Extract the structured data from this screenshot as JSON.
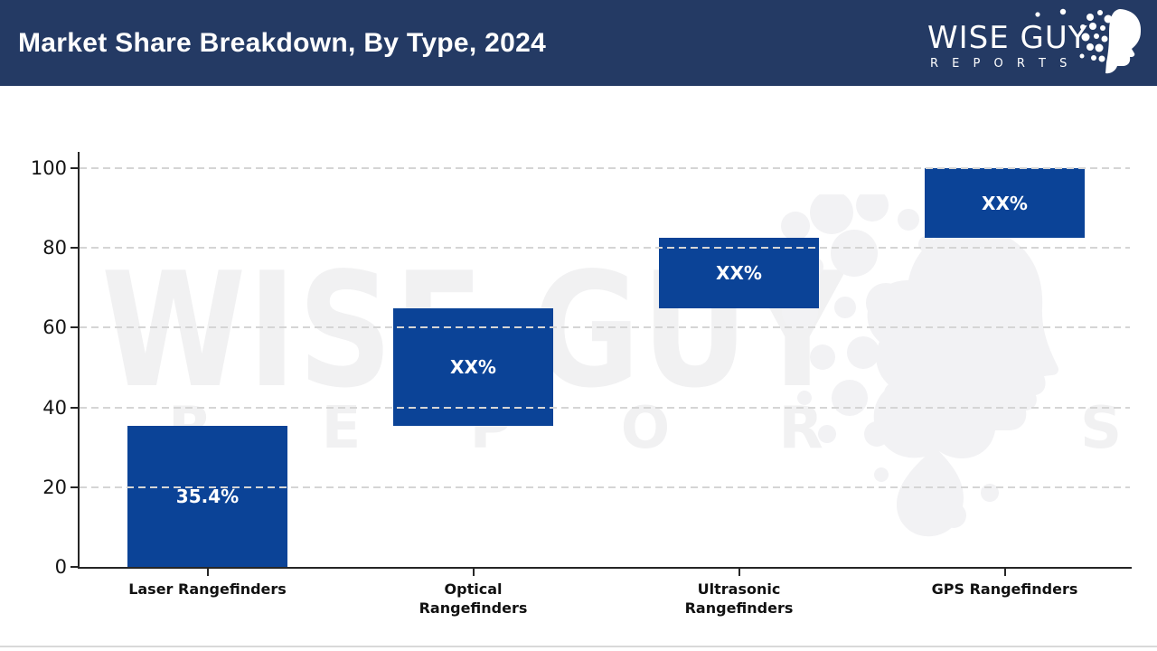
{
  "header": {
    "title": "Market Share Breakdown, By Type, 2024",
    "bg_color": "#243a64",
    "logo": {
      "line1": "WISE GUY",
      "line2": "R E P O R T S"
    }
  },
  "watermark": {
    "line1": "WISE GUY",
    "line2": "R E P O R T S"
  },
  "chart_data": {
    "type": "bar",
    "subtype": "waterfall",
    "title": "Market Share Breakdown, By Type, 2024",
    "categories": [
      "Laser Rangefinders",
      "Optical Rangefinders",
      "Ultrasonic Rangefinders",
      "GPS Rangefinders"
    ],
    "category_lines": [
      [
        "Laser Rangefinders"
      ],
      [
        "Optical",
        "Rangefinders"
      ],
      [
        "Ultrasonic",
        "Rangefinders"
      ],
      [
        "GPS Rangefinders"
      ]
    ],
    "segments": [
      {
        "category": "Laser Rangefinders",
        "start": 0,
        "end": 35.4,
        "label": "35.4%"
      },
      {
        "category": "Optical Rangefinders",
        "start": 35.4,
        "end": 64.9,
        "label": "XX%"
      },
      {
        "category": "Ultrasonic Rangefinders",
        "start": 64.9,
        "end": 82.5,
        "label": "XX%"
      },
      {
        "category": "GPS Rangefinders",
        "start": 82.5,
        "end": 100,
        "label": "XX%"
      }
    ],
    "yticks": [
      0,
      20,
      40,
      60,
      80,
      100
    ],
    "ytick_labels": [
      "0",
      "20",
      "40",
      "60",
      "80",
      "100"
    ],
    "ylim": [
      0,
      100
    ],
    "xlabel": "",
    "ylabel": "",
    "grid": "horizontal-dashed",
    "legend": "none",
    "bar_color": "#0b4397",
    "bar_label_color": "#ffffff",
    "gridline_color": "#d5d5d5",
    "axis_color": "#262626"
  }
}
